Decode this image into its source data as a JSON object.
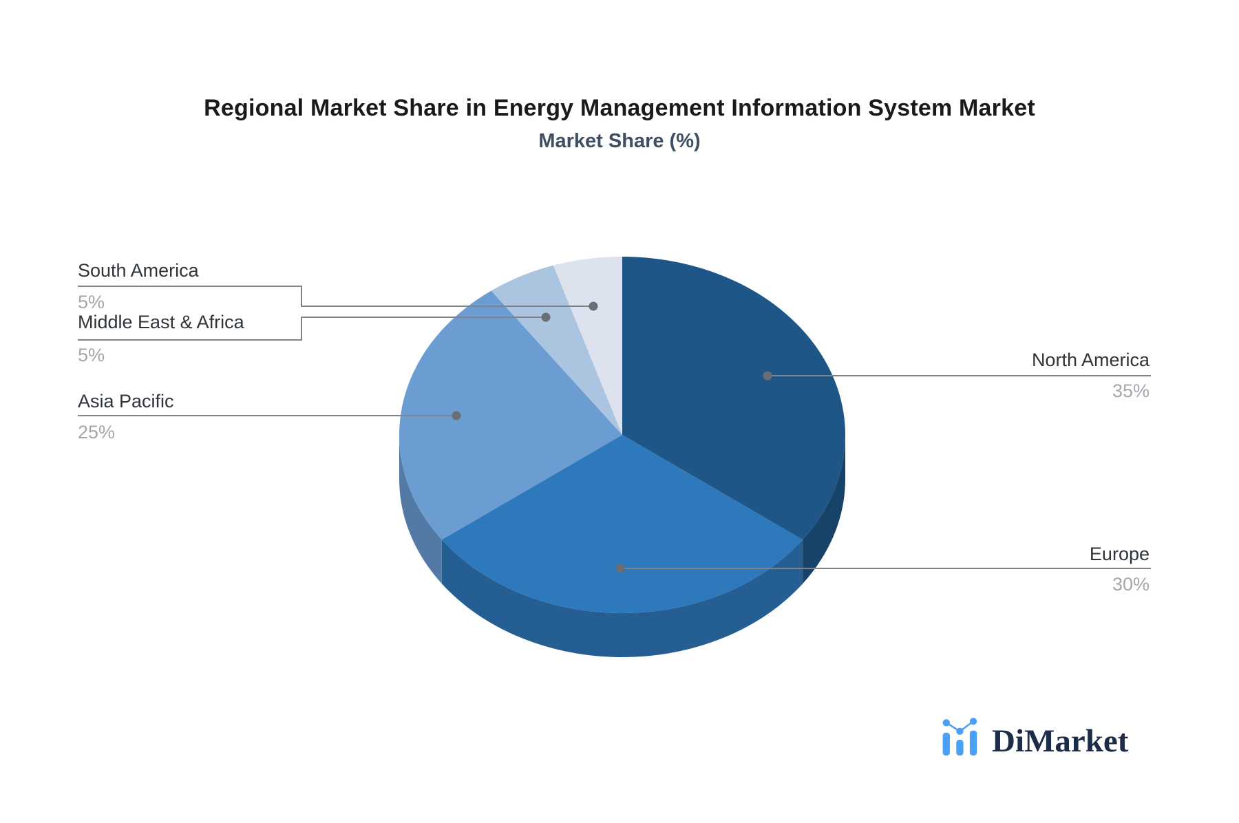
{
  "header": {
    "title": "Regional Market Share in Energy Management Information System Market",
    "subtitle": "Market Share (%)"
  },
  "chart_data": {
    "type": "pie",
    "style": "pie3d",
    "title": "Regional Market Share in Energy Management Information System Market",
    "subtitle": "Market Share (%)",
    "unit": "%",
    "direction": "clockwise",
    "start_angle": "12-oclock",
    "legend": false,
    "labels": [
      "North America",
      "Europe",
      "Asia Pacific",
      "Middle East & Africa",
      "South America"
    ],
    "values": [
      35,
      30,
      25,
      5,
      5
    ],
    "pct_labels": [
      "35%",
      "30%",
      "25%",
      "5%",
      "5%"
    ],
    "colors": [
      "#1e5687",
      "#2e78bc",
      "#6b9cd2",
      "#abc4e0",
      "#dce3ee"
    ],
    "callout_line_color": "#7f8287",
    "label_text_color": "#2f3439",
    "pct_text_color": "#a3a7ac"
  },
  "branding": {
    "logo_text": "DiMarket",
    "logo_accent": "#49a0f6"
  }
}
